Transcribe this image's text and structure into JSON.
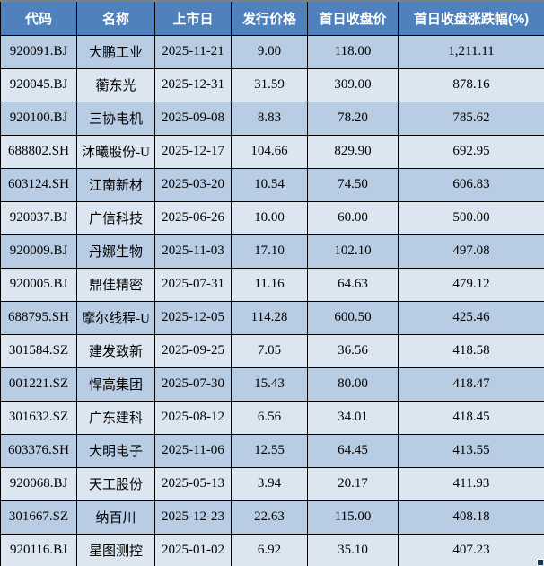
{
  "colors": {
    "header_bg": "#4f81bd",
    "header_text": "#ffffff",
    "row_odd_bg": "#b8cce4",
    "row_even_bg": "#dce6f1",
    "grid_border": "#000000",
    "top_edge": "#7f7f7f",
    "body_text": "#000000",
    "fill_handle": "#17375e"
  },
  "chart_data": {
    "type": "table",
    "title": "",
    "columns": [
      "代码",
      "名称",
      "上市日",
      "发行价格",
      "首日收盘价",
      "首日收盘涨跌幅(%)"
    ],
    "rows": [
      [
        "920091.BJ",
        "大鹏工业",
        "2025-11-21",
        "9.00",
        "118.00",
        "1,211.11"
      ],
      [
        "920045.BJ",
        "蘅东光",
        "2025-12-31",
        "31.59",
        "309.00",
        "878.16"
      ],
      [
        "920100.BJ",
        "三协电机",
        "2025-09-08",
        "8.83",
        "78.20",
        "785.62"
      ],
      [
        "688802.SH",
        "沐曦股份-U",
        "2025-12-17",
        "104.66",
        "829.90",
        "692.95"
      ],
      [
        "603124.SH",
        "江南新材",
        "2025-03-20",
        "10.54",
        "74.50",
        "606.83"
      ],
      [
        "920037.BJ",
        "广信科技",
        "2025-06-26",
        "10.00",
        "60.00",
        "500.00"
      ],
      [
        "920009.BJ",
        "丹娜生物",
        "2025-11-03",
        "17.10",
        "102.10",
        "497.08"
      ],
      [
        "920005.BJ",
        "鼎佳精密",
        "2025-07-31",
        "11.16",
        "64.63",
        "479.12"
      ],
      [
        "688795.SH",
        "摩尔线程-U",
        "2025-12-05",
        "114.28",
        "600.50",
        "425.46"
      ],
      [
        "301584.SZ",
        "建发致新",
        "2025-09-25",
        "7.05",
        "36.56",
        "418.58"
      ],
      [
        "001221.SZ",
        "悍高集团",
        "2025-07-30",
        "15.43",
        "80.00",
        "418.47"
      ],
      [
        "301632.SZ",
        "广东建科",
        "2025-08-12",
        "6.56",
        "34.01",
        "418.45"
      ],
      [
        "603376.SH",
        "大明电子",
        "2025-11-06",
        "12.55",
        "64.45",
        "413.55"
      ],
      [
        "920068.BJ",
        "天工股份",
        "2025-05-13",
        "3.94",
        "20.17",
        "411.93"
      ],
      [
        "301667.SZ",
        "纳百川",
        "2025-12-23",
        "22.63",
        "115.00",
        "408.18"
      ],
      [
        "920116.BJ",
        "星图测控",
        "2025-01-02",
        "6.92",
        "35.10",
        "407.23"
      ]
    ]
  }
}
